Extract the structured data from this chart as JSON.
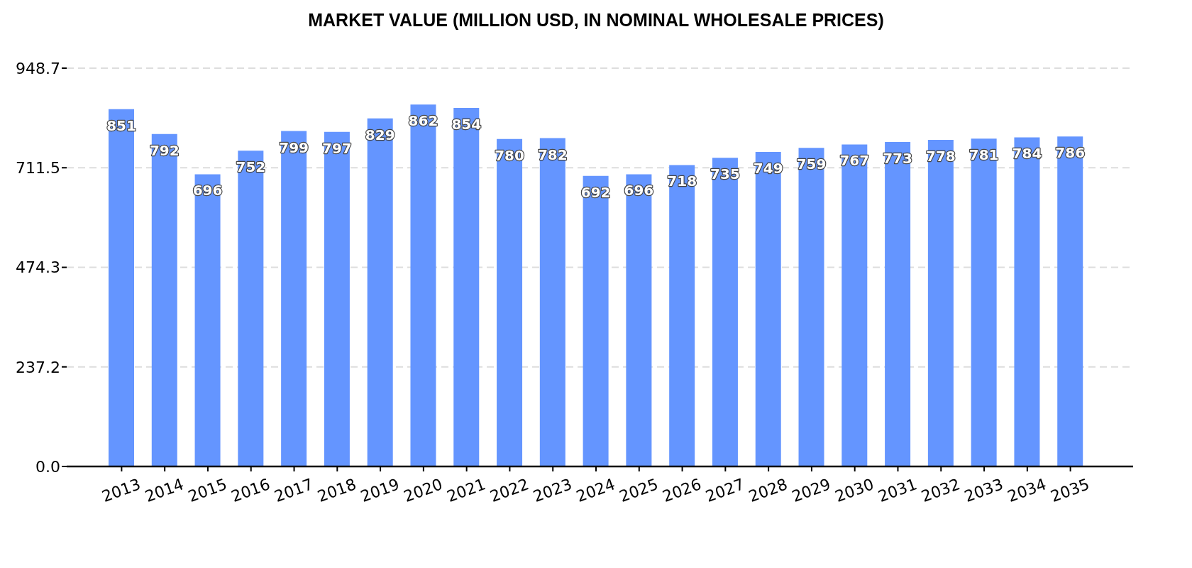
{
  "chart_data": {
    "type": "bar",
    "title": "MARKET VALUE (MILLION USD, IN NOMINAL WHOLESALE PRICES)",
    "categories": [
      "2013",
      "2014",
      "2015",
      "2016",
      "2017",
      "2018",
      "2019",
      "2020",
      "2021",
      "2022",
      "2023",
      "2024",
      "2025",
      "2026",
      "2027",
      "2028",
      "2029",
      "2030",
      "2031",
      "2032",
      "2033",
      "2034",
      "2035"
    ],
    "values": [
      851,
      792,
      696,
      752,
      799,
      797,
      829,
      862,
      854,
      780,
      782,
      692,
      696,
      718,
      735,
      749,
      759,
      767,
      773,
      778,
      781,
      784,
      786
    ],
    "color": "#6495ff",
    "ylim": [
      0,
      948.7
    ],
    "yticks": [
      {
        "value": 0,
        "label": "0.0"
      },
      237.2,
      474.3,
      711.5,
      948.7
    ],
    "grid": "y",
    "data_labels": true
  }
}
